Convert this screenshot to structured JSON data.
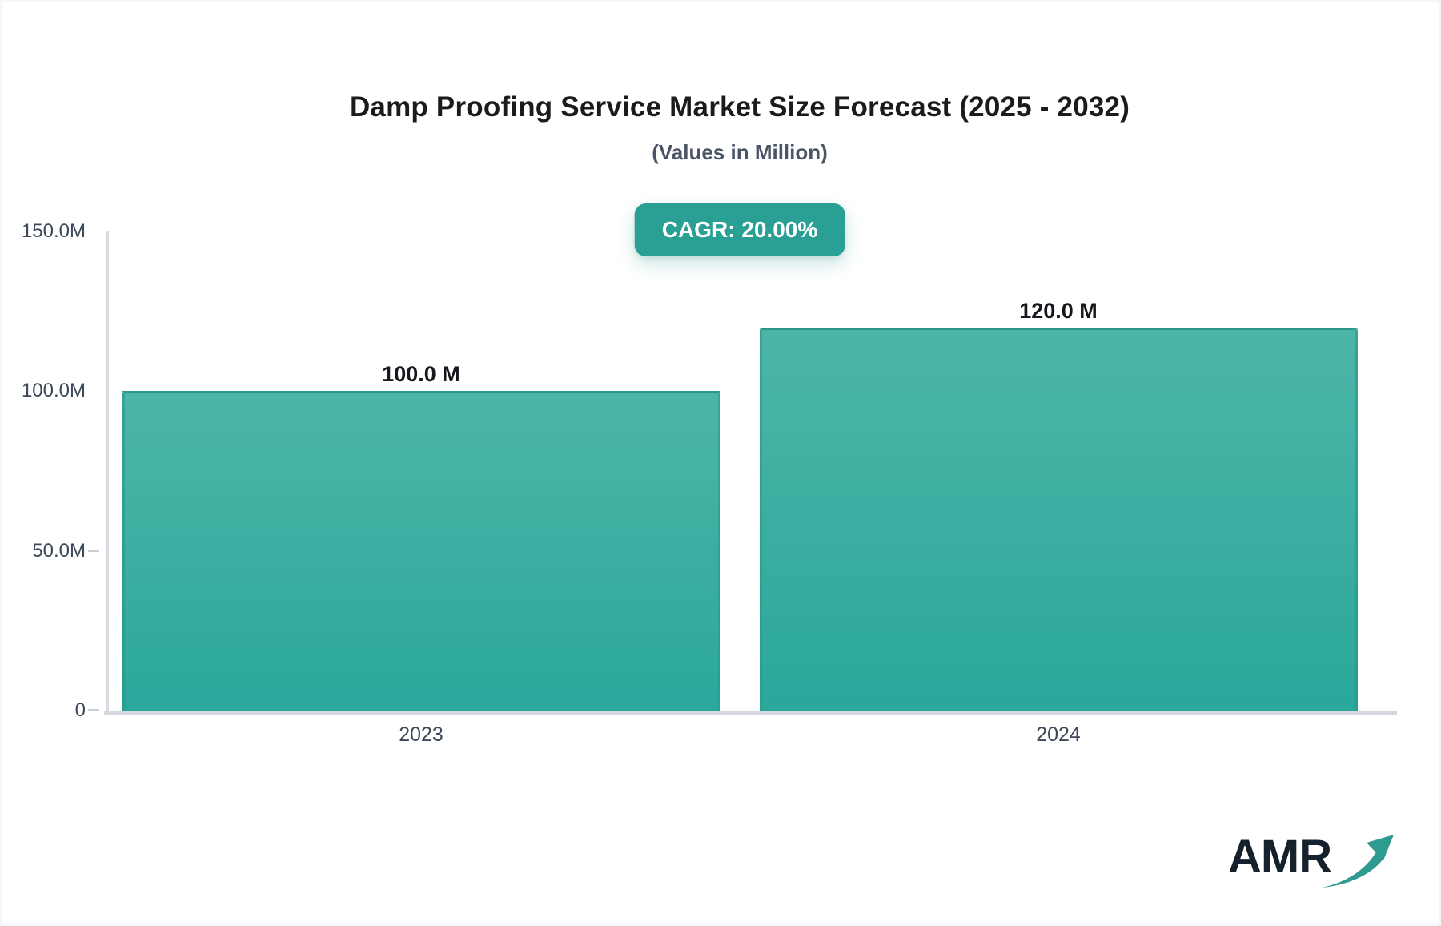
{
  "header": {
    "title": "Damp Proofing Service Market Size Forecast (2025 - 2032)",
    "subtitle": "(Values in Million)",
    "cagr_badge": {
      "label": "CAGR: 20.00%",
      "bg_color": "#2aa095",
      "text_color": "#ffffff"
    }
  },
  "chart_data": {
    "type": "bar",
    "title": "Damp Proofing Service Market Size Forecast (2025 - 2032)",
    "subtitle": "(Values in Million)",
    "unit": "Million (M)",
    "cagr_percent": 20.0,
    "categories": [
      "2023",
      "2024"
    ],
    "values": [
      100.0,
      120.0
    ],
    "value_labels": [
      "100.0 M",
      "120.0 M"
    ],
    "ylim": [
      0,
      150
    ],
    "yticks": [
      {
        "value": 150,
        "label": "150.0M",
        "dash_visible": false
      },
      {
        "value": 100,
        "label": "100.0M",
        "dash_visible": false
      },
      {
        "value": 50,
        "label": "50.0M",
        "dash_visible": true
      },
      {
        "value": 0,
        "label": "0",
        "dash_visible": true
      }
    ],
    "grid": false,
    "legend_position": "none",
    "colors": {
      "bar_gradient_top": "#4db5a7",
      "bar_gradient_bottom": "#2aa89b",
      "bar_border": "#2b978b",
      "axis_line": "#d7dbe2",
      "tick_text": "#3d4959",
      "value_label_text": "#15181c"
    }
  },
  "branding": {
    "logo_text": "AMR",
    "logo_icon": "growth-arrow-icon",
    "logo_text_color": "#15222d",
    "logo_arrow_color": "#2e9a90"
  }
}
